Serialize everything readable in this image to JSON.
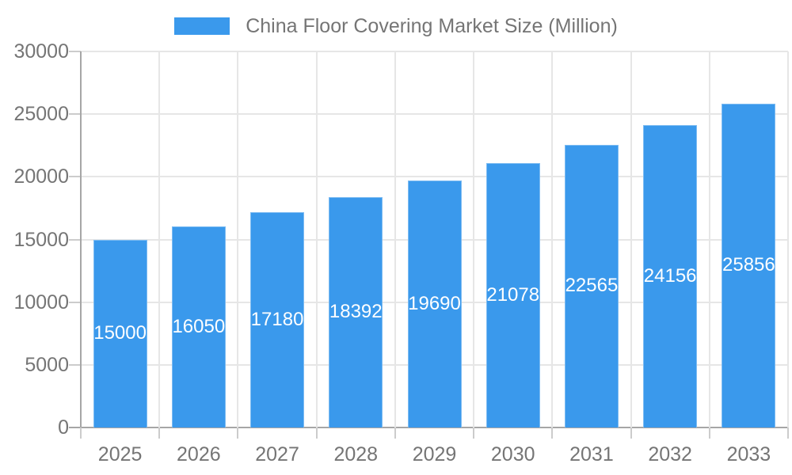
{
  "legend": {
    "label": "China Floor Covering Market Size (Million)"
  },
  "chart_data": {
    "type": "bar",
    "title": "China Floor Covering Market Size (Million)",
    "series_name": "China Floor Covering Market Size (Million)",
    "categories": [
      "2025",
      "2026",
      "2027",
      "2028",
      "2029",
      "2030",
      "2031",
      "2032",
      "2033"
    ],
    "values": [
      15000,
      16050,
      17180,
      18392,
      19690,
      21078,
      22565,
      24156,
      25856
    ],
    "bar_labels": [
      "15000",
      "16050",
      "17180",
      "18392",
      "19690",
      "21078",
      "22565",
      "24156",
      "25856"
    ],
    "xlabel": "",
    "ylabel": "",
    "ylim": [
      0,
      30000
    ],
    "yticks": [
      0,
      5000,
      10000,
      15000,
      20000,
      25000,
      30000
    ],
    "grid": true,
    "legend_position": "top",
    "bar_label_position": "inside-center"
  },
  "colors": {
    "bar": "#3A99EC",
    "axis_line": "#a6a6a6",
    "gridline": "#e6e6e6",
    "tick": "#cccccc",
    "axis_text": "#757575",
    "bar_label_text": "#ffffff"
  }
}
